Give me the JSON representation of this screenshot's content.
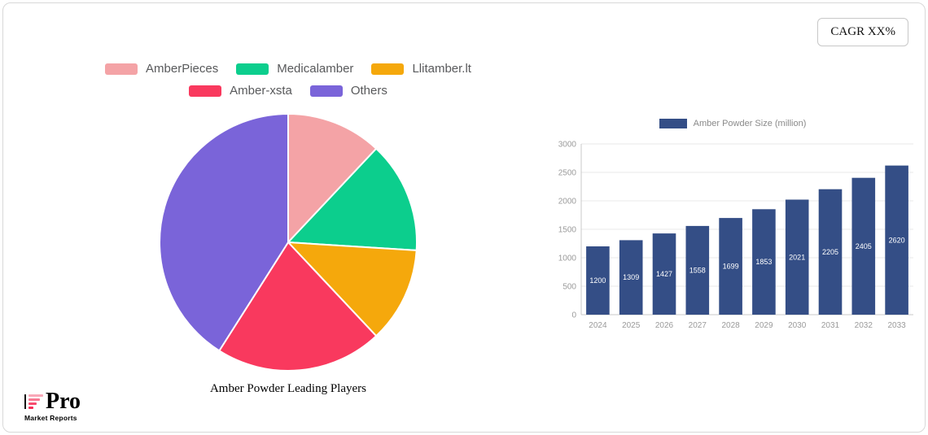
{
  "cagr_badge": "CAGR XX%",
  "logo": {
    "name": "Pro",
    "subtitle": "Market Reports"
  },
  "chart_data": [
    {
      "type": "pie",
      "title": "Amber Powder Leading Players",
      "labels": [
        "AmberPieces",
        "Medicalamber",
        "Llitamber.lt",
        "Amber-xsta",
        "Others"
      ],
      "values": [
        12,
        14,
        12,
        21,
        41
      ],
      "colors": [
        "#F4A3A6",
        "#0CCE8D",
        "#F5A80C",
        "#F9395E",
        "#7A64D9"
      ],
      "legend_rows": [
        [
          0,
          1,
          2
        ],
        [
          3,
          4
        ]
      ],
      "start_angle": "top",
      "direction": "clockwise",
      "legend_position": "top"
    },
    {
      "type": "bar",
      "series": [
        {
          "name": "Amber Powder Size (million)",
          "values": [
            1200,
            1309,
            1427,
            1558,
            1699,
            1853,
            2021,
            2205,
            2405,
            2620
          ]
        }
      ],
      "categories": [
        "2024",
        "2025",
        "2026",
        "2027",
        "2028",
        "2029",
        "2030",
        "2031",
        "2032",
        "2033"
      ],
      "color": "#344E86",
      "ylim": [
        0,
        3000
      ],
      "yticks": [
        0,
        500,
        1000,
        1500,
        2000,
        2500,
        3000
      ],
      "grid": true,
      "value_labels": "inside-middle",
      "value_label_color": "#ffffff",
      "legend_position": "top"
    }
  ]
}
